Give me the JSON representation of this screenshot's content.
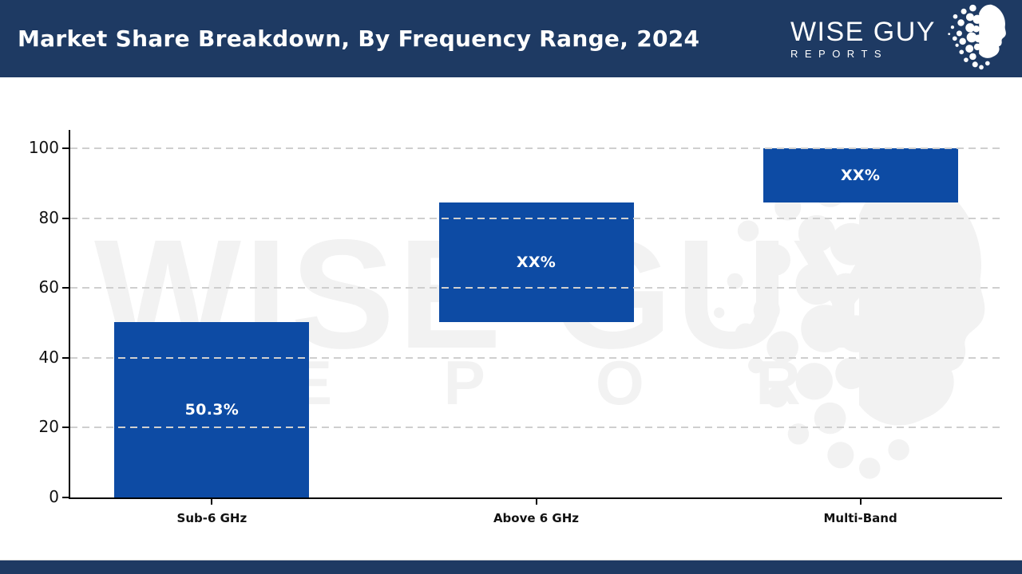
{
  "header": {
    "title": "Market Share Breakdown, By Frequency Range, 2024",
    "logo": {
      "line1": "WISE GUY",
      "line2": "REPORTS"
    }
  },
  "watermark": {
    "line1": "WISE GUY",
    "line2": "REPORTS"
  },
  "chart_data": {
    "type": "bar",
    "variant": "floating-waterfall",
    "title": "Market Share Breakdown, By Frequency Range, 2024",
    "categories": [
      "Sub-6 GHz",
      "Above 6 GHz",
      "Multi-Band"
    ],
    "bars": [
      {
        "category": "Sub-6 GHz",
        "start": 0,
        "end": 50.3,
        "label": "50.3%"
      },
      {
        "category": "Above 6 GHz",
        "start": 50.3,
        "end": 84.5,
        "label": "XX%"
      },
      {
        "category": "Multi-Band",
        "start": 84.5,
        "end": 100,
        "label": "XX%"
      }
    ],
    "xlabel": "",
    "ylabel": "",
    "yticks": [
      0,
      20,
      40,
      60,
      80,
      100
    ],
    "ylim": [
      0,
      105.25
    ],
    "grid": "horizontal-dashed-over-bars",
    "legend": "none"
  },
  "colors": {
    "header_bg": "#1e3a63",
    "bar": "#0d4ba4",
    "grid": "#cfcfcf",
    "axis": "#000000",
    "watermark": "#f2f2f2",
    "bar_label": "#ffffff",
    "title_text": "#ffffff"
  }
}
